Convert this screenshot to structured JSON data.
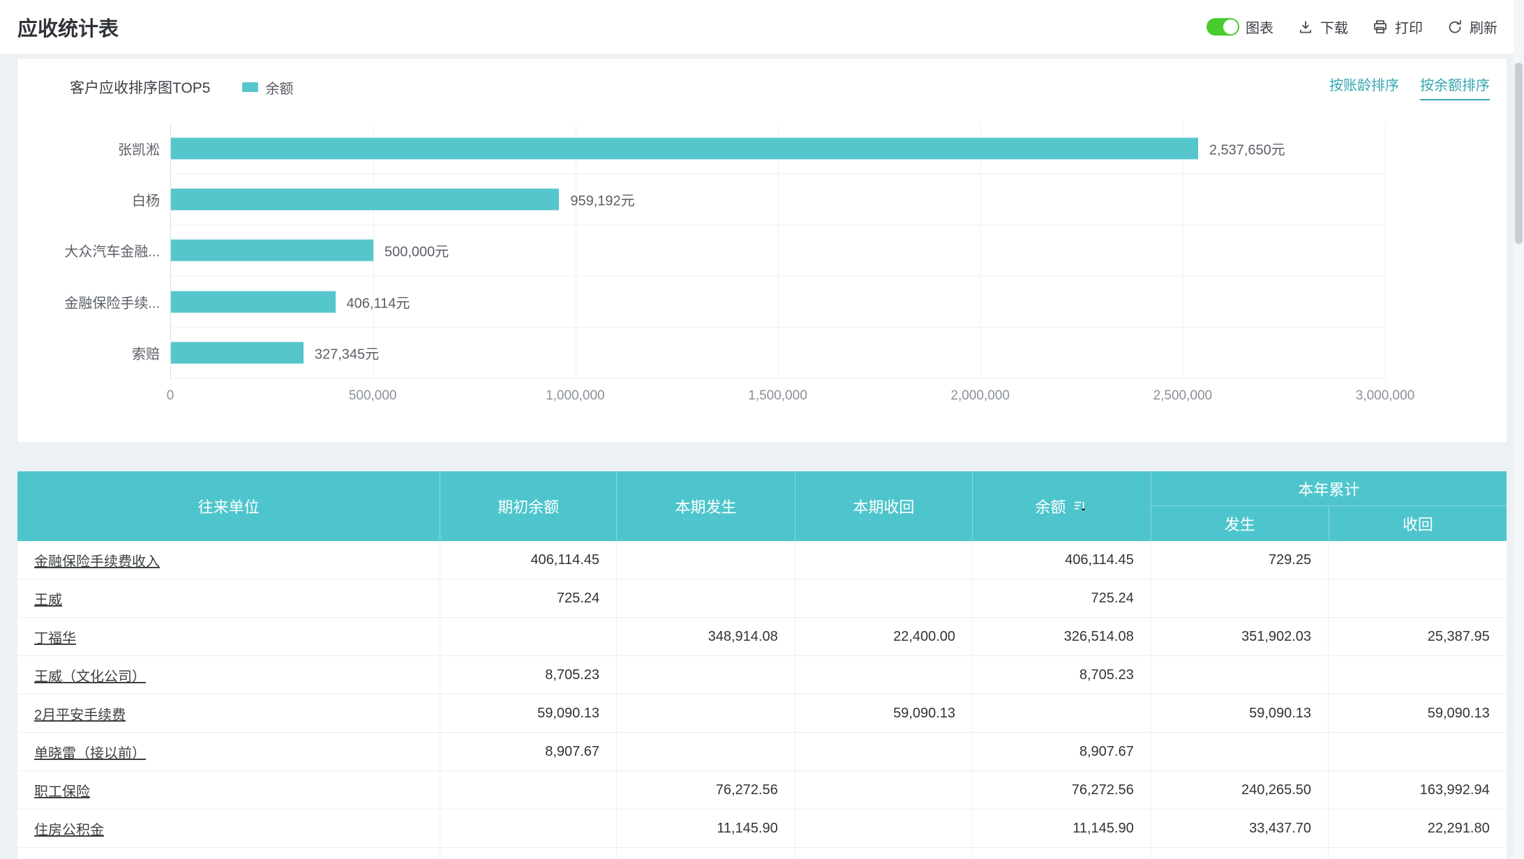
{
  "page": {
    "title": "应收统计表"
  },
  "toolbar": {
    "chart_toggle_label": "图表",
    "download_label": "下载",
    "print_label": "打印",
    "refresh_label": "刷新",
    "toggle_state": "on"
  },
  "chart_panel": {
    "title": "客户应收排序图TOP5",
    "legend": "余额",
    "sort_tabs": [
      {
        "label": "按账龄排序",
        "active": false
      },
      {
        "label": "按余额排序",
        "active": true
      }
    ]
  },
  "chart_data": {
    "type": "bar",
    "orientation": "horizontal",
    "title": "客户应收排序图TOP5",
    "series_name": "余额",
    "categories": [
      "张凯淞",
      "白杨",
      "大众汽车金融...",
      "金融保险手续...",
      "索赔"
    ],
    "values": [
      2537650,
      959192,
      500000,
      406114,
      327345
    ],
    "value_labels": [
      "2,537,650元",
      "959,192元",
      "500,000元",
      "406,114元",
      "327,345元"
    ],
    "xlim": [
      0,
      3000000
    ],
    "xticks": [
      "0",
      "500,000",
      "1,000,000",
      "1,500,000",
      "2,000,000",
      "2,500,000",
      "3,000,000"
    ],
    "grid": true,
    "legend_position": "top"
  },
  "table": {
    "headers": {
      "col1": "往来单位",
      "col2": "期初余额",
      "col3": "本期发生",
      "col4": "本期收回",
      "col5": "余额",
      "group": "本年累计",
      "sub1": "发生",
      "sub2": "收回"
    },
    "rows": [
      {
        "name": "金融保险手续费收入",
        "cells": [
          "406,114.45",
          "",
          "",
          "406,114.45",
          "729.25",
          ""
        ]
      },
      {
        "name": "王威",
        "cells": [
          "725.24",
          "",
          "",
          "725.24",
          "",
          ""
        ]
      },
      {
        "name": "丁福华",
        "cells": [
          "",
          "348,914.08",
          "22,400.00",
          "326,514.08",
          "351,902.03",
          "25,387.95"
        ]
      },
      {
        "name": "王威（文化公司）",
        "cells": [
          "8,705.23",
          "",
          "",
          "8,705.23",
          "",
          ""
        ]
      },
      {
        "name": "2月平安手续费",
        "cells": [
          "59,090.13",
          "",
          "59,090.13",
          "",
          "59,090.13",
          "59,090.13"
        ]
      },
      {
        "name": "单晓雷（接以前）",
        "cells": [
          "8,907.67",
          "",
          "",
          "8,907.67",
          "",
          ""
        ]
      },
      {
        "name": "职工保险",
        "cells": [
          "",
          "76,272.56",
          "",
          "76,272.56",
          "240,265.50",
          "163,992.94"
        ]
      },
      {
        "name": "住房公积金",
        "cells": [
          "",
          "11,145.90",
          "",
          "11,145.90",
          "33,437.70",
          "22,291.80"
        ]
      }
    ]
  },
  "colors": {
    "header_teal": "#4ec5cd",
    "bar_teal": "#55c6cc",
    "toggle_green": "#49cc2e",
    "tab_text_teal": "#35a7b1"
  }
}
